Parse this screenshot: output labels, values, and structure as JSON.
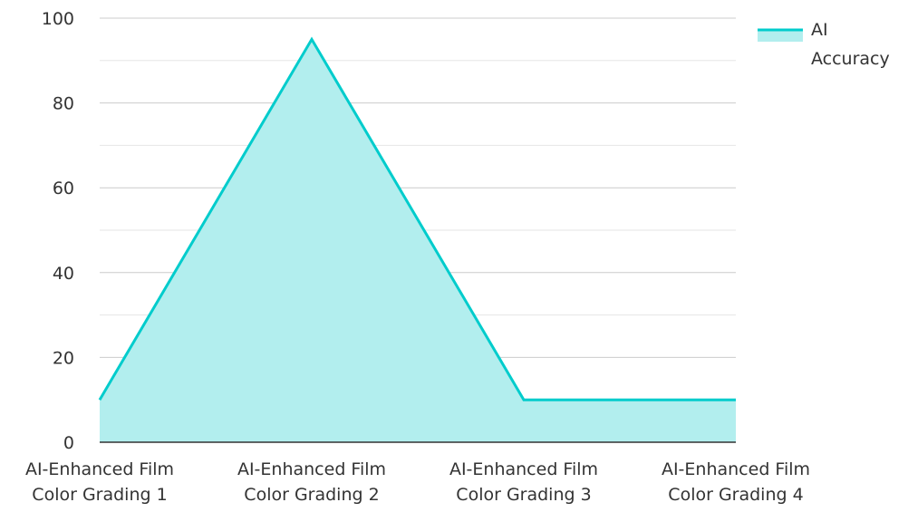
{
  "chart_data": {
    "type": "area",
    "categories": [
      [
        "AI-Enhanced Film",
        "Color Grading 1"
      ],
      [
        "AI-Enhanced Film",
        "Color Grading 2"
      ],
      [
        "AI-Enhanced Film",
        "Color Grading 3"
      ],
      [
        "AI-Enhanced Film",
        "Color Grading 4"
      ]
    ],
    "series": [
      {
        "name": "AI Accuracy",
        "values": [
          10,
          95,
          10,
          10
        ],
        "color": "#00CCCC",
        "fill": "#B2EEEE"
      }
    ],
    "ylim": [
      0,
      100
    ],
    "yticks": [
      0,
      20,
      40,
      60,
      80,
      100
    ],
    "grid": true,
    "legend_placement": "top-right",
    "legend_lines": [
      "AI",
      "Accuracy"
    ]
  }
}
